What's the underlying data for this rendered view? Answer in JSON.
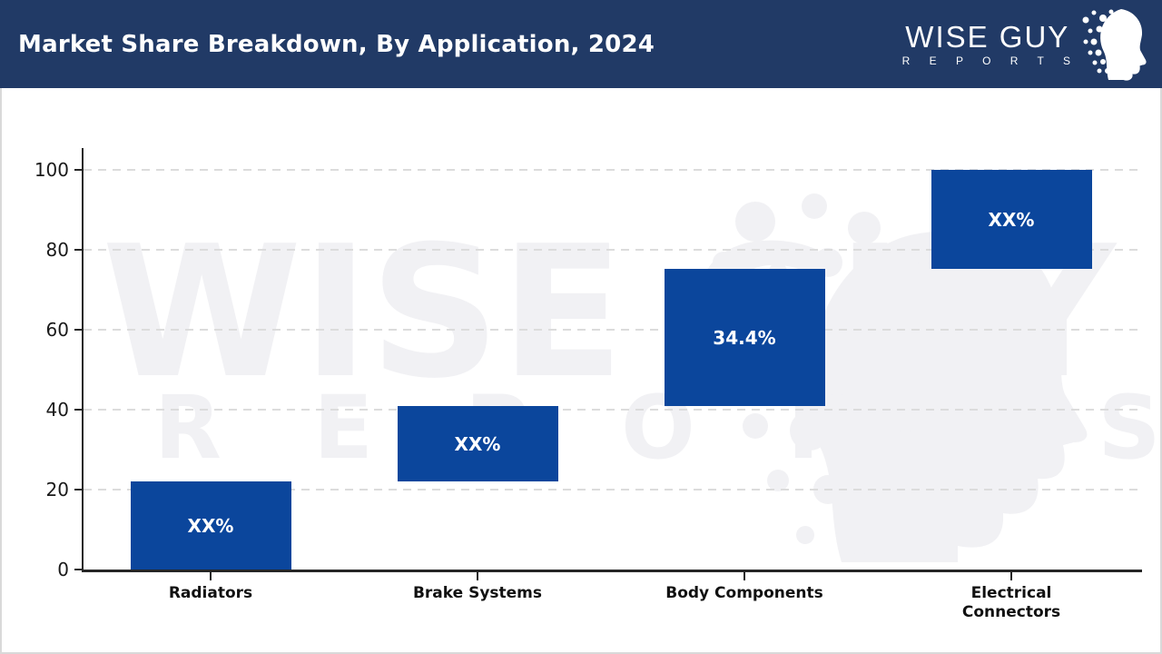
{
  "header": {
    "title": "Market Share Breakdown, By Application, 2024",
    "logo": {
      "name": "WISE GUY",
      "sub": "R E P O R T S"
    }
  },
  "watermark": {
    "word": "WISE GUY",
    "sub": "R E P O R T S"
  },
  "chart_data": {
    "type": "bar",
    "subtype": "waterfall",
    "title": "Market Share Breakdown, By Application, 2024",
    "categories": [
      "Radiators",
      "Brake Systems",
      "Body Components",
      "Electrical Connectors"
    ],
    "series": [
      {
        "name": "Market share (%)",
        "segments": [
          {
            "category": "Radiators",
            "start": 0,
            "end": 22,
            "value_label": "XX%"
          },
          {
            "category": "Brake Systems",
            "start": 22,
            "end": 40.8,
            "value_label": "XX%"
          },
          {
            "category": "Body Components",
            "start": 40.8,
            "end": 75.2,
            "value_label": "34.4%"
          },
          {
            "category": "Electrical Connectors",
            "start": 75.2,
            "end": 100,
            "value_label": "XX%"
          }
        ]
      }
    ],
    "xlabel": "",
    "ylabel": "",
    "ylim": [
      0,
      100
    ],
    "yticks": [
      0,
      20,
      40,
      60,
      80,
      100
    ],
    "grid": "horizontal-dashed",
    "legend_position": "none",
    "colors": {
      "bar": "#0b469c",
      "bar_label": "#ffffff",
      "grid": "#dcdcdc",
      "axis": "#262626",
      "header_bg": "#213a66",
      "watermark": "#f1f1f4"
    }
  }
}
